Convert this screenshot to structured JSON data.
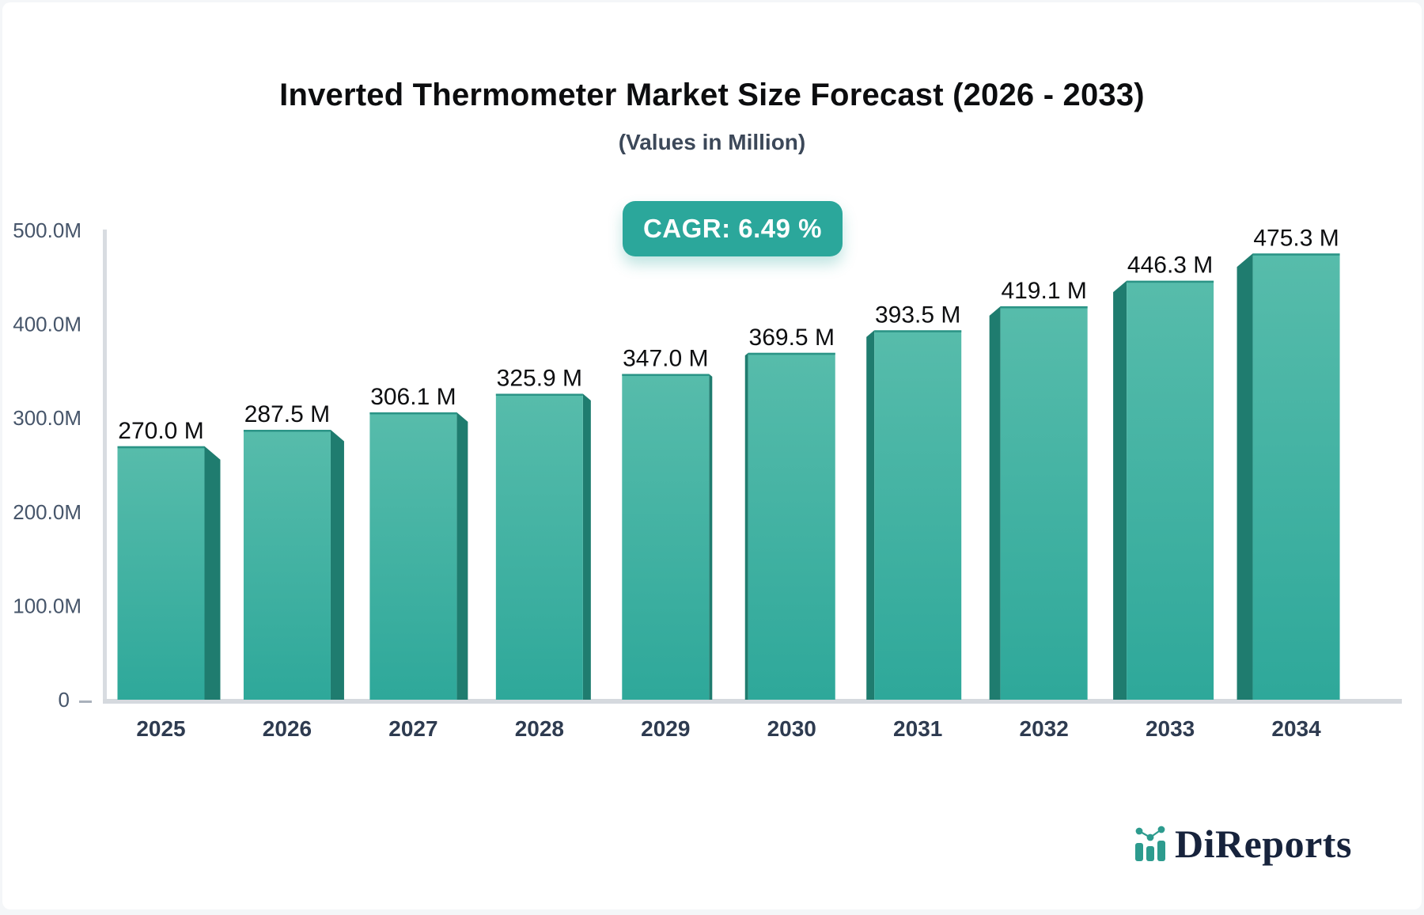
{
  "title": "Inverted Thermometer Market Size Forecast (2026 - 2033)",
  "subtitle": "(Values in Million)",
  "badge": {
    "label": "CAGR: 6.49 %",
    "color": "#2ba79b"
  },
  "chart_data": {
    "type": "bar",
    "title": "Inverted Thermometer Market Size Forecast (2026 - 2033)",
    "subtitle": "(Values in Million)",
    "unit": "Million",
    "categories": [
      "2025",
      "2026",
      "2027",
      "2028",
      "2029",
      "2030",
      "2031",
      "2032",
      "2033",
      "2034"
    ],
    "values": [
      270.0,
      287.5,
      306.1,
      325.9,
      347.0,
      369.5,
      393.5,
      419.1,
      446.3,
      475.3
    ],
    "value_labels": [
      "270.0 M",
      "287.5 M",
      "306.1 M",
      "325.9 M",
      "347.0 M",
      "369.5 M",
      "393.5 M",
      "419.1 M",
      "446.3 M",
      "475.3 M"
    ],
    "y_axis": {
      "tick_values": [
        500,
        400,
        300,
        200,
        100,
        0
      ],
      "tick_labels": [
        "500.0M",
        "400.0M",
        "300.0M",
        "200.0M",
        "100.0M",
        "0"
      ],
      "min": 0,
      "max": 500
    },
    "grid": false,
    "legend": null,
    "cagr_annotation": "CAGR: 6.49 %",
    "colors": {
      "bar_face_top": "#57bcab",
      "bar_face_bottom": "#2ea89a",
      "bar_top_edge": "#2b9486",
      "bar_side": "#1f7c6f",
      "axis_line": "#d8dce1",
      "baseline": "#d5d9de",
      "y_tick_text": "#46556a",
      "x_tick_text": "#2e3b50",
      "value_text": "#0d0e10",
      "zero_dash": "#a9b1bb"
    }
  },
  "logo": {
    "text": "DiReports",
    "icon": "mini-bar-chart-icon",
    "text_color": "#17233c",
    "accent_color": "#2d9b8e"
  }
}
